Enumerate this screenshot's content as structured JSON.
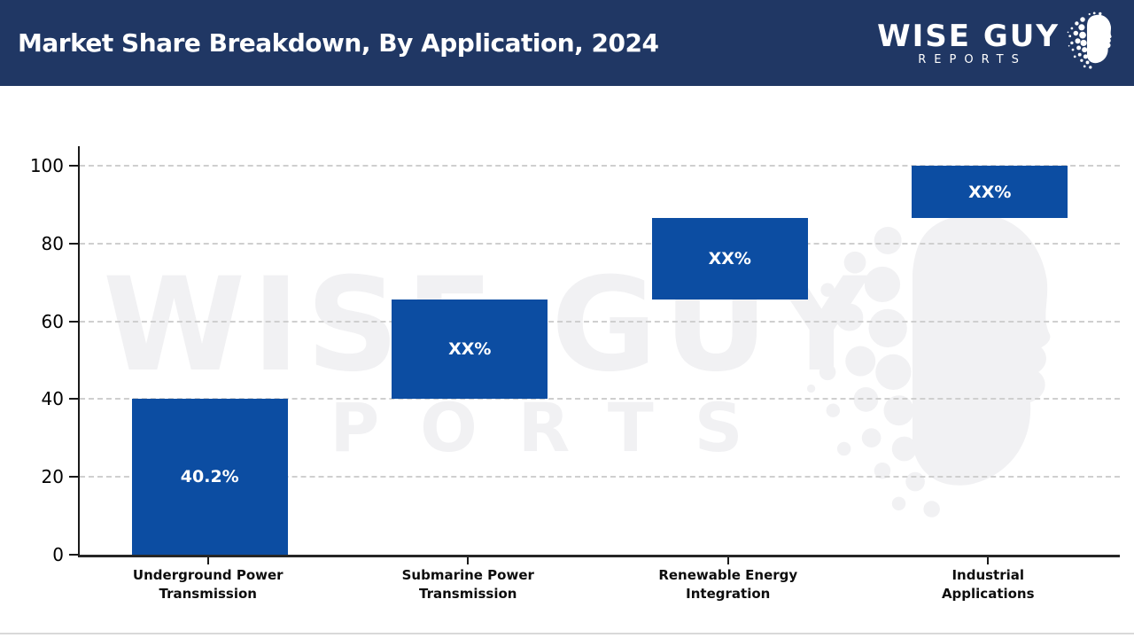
{
  "header": {
    "title": "Market Share Breakdown, By Application, 2024",
    "bg_color": "#203764",
    "logo": {
      "line1": "WISE GUY",
      "line2": "REPORTS"
    }
  },
  "watermark": {
    "line1": "WISE GUY",
    "line2": "REPORTS"
  },
  "chart_data": {
    "type": "bar",
    "subtype": "waterfall",
    "title": "Market Share Breakdown, By Application, 2024",
    "categories": [
      "Underground Power\nTransmission",
      "Submarine Power\nTransmission",
      "Renewable Energy\nIntegration",
      "Industrial\nApplications"
    ],
    "segments": [
      {
        "category": "Underground Power Transmission",
        "start": 0,
        "end": 40.2,
        "label": "40.2%"
      },
      {
        "category": "Submarine Power Transmission",
        "start": 40.2,
        "end": 65.5,
        "label": "XX%"
      },
      {
        "category": "Renewable Energy Integration",
        "start": 65.5,
        "end": 86.5,
        "label": "XX%"
      },
      {
        "category": "Industrial Applications",
        "start": 86.5,
        "end": 100,
        "label": "XX%"
      }
    ],
    "yticks": [
      0,
      20,
      40,
      60,
      80,
      100
    ],
    "ylim": [
      0,
      105
    ],
    "xlabel": "",
    "ylabel": "",
    "grid": true,
    "grid_style": "dashed",
    "legend": false,
    "bar_color": "#0C4DA2",
    "bar_label_color": "#ffffff",
    "axis_color": "#1a1a1a",
    "grid_color": "#cfcfcf"
  },
  "colors": {
    "header_bg": "#203764",
    "bar_blue": "#0C4DA2",
    "watermark_gray": "#f1f1f3",
    "bottom_rule": "#d9d9d9"
  }
}
